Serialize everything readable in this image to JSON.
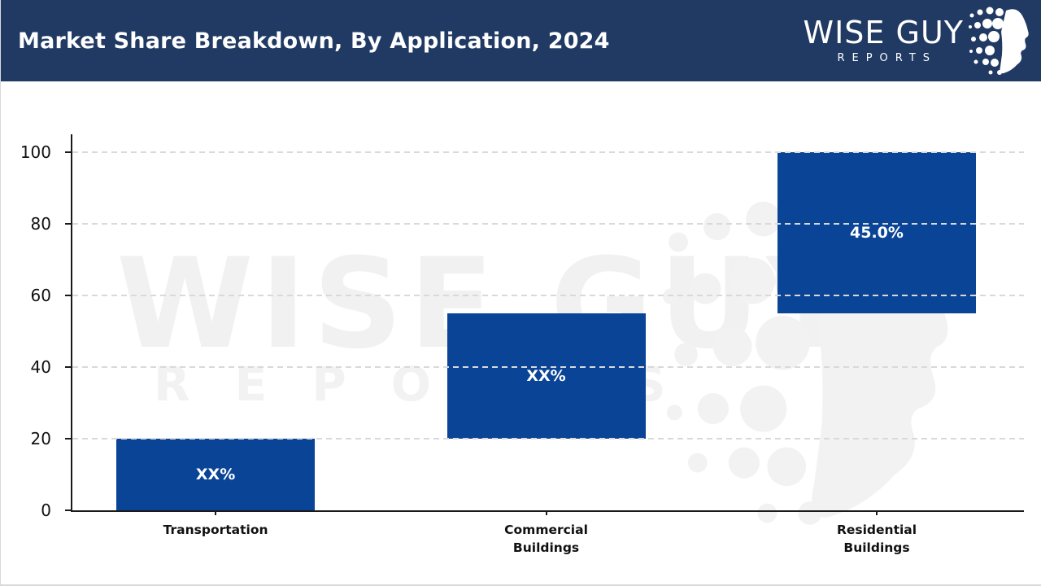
{
  "header": {
    "title": "Market Share Breakdown, By Application, 2024",
    "logo": {
      "line1": "WISE GUY",
      "line2": "REPORTS"
    }
  },
  "watermark": {
    "line1": "WISE GUY",
    "line2": "REPORTS"
  },
  "colors": {
    "header_bg": "#213a63",
    "bar": "#0a4496",
    "grid": "#d9d9d9",
    "axis": "#1a1a1a",
    "watermark": "#f1f1f1"
  },
  "chart_data": {
    "type": "bar",
    "variant": "floating-segment-waterfall",
    "title": "Market Share Breakdown, By Application, 2024",
    "categories": [
      "Transportation",
      "Commercial Buildings",
      "Residential Buildings"
    ],
    "bars": [
      {
        "category": "Transportation",
        "display": "Transportation",
        "start": 0,
        "end": 20,
        "label": "XX%"
      },
      {
        "category": "Commercial Buildings",
        "display": "Commercial\nBuildings",
        "start": 20,
        "end": 55,
        "label": "XX%"
      },
      {
        "category": "Residential Buildings",
        "display": "Residential\nBuildings",
        "start": 55,
        "end": 100,
        "label": "45.0%"
      }
    ],
    "yticks": [
      0,
      20,
      40,
      60,
      80,
      100
    ],
    "ylim": [
      0,
      105
    ],
    "grid": true,
    "grid_style": "dashed",
    "legend": "none",
    "bar_color": "#0a4496"
  }
}
